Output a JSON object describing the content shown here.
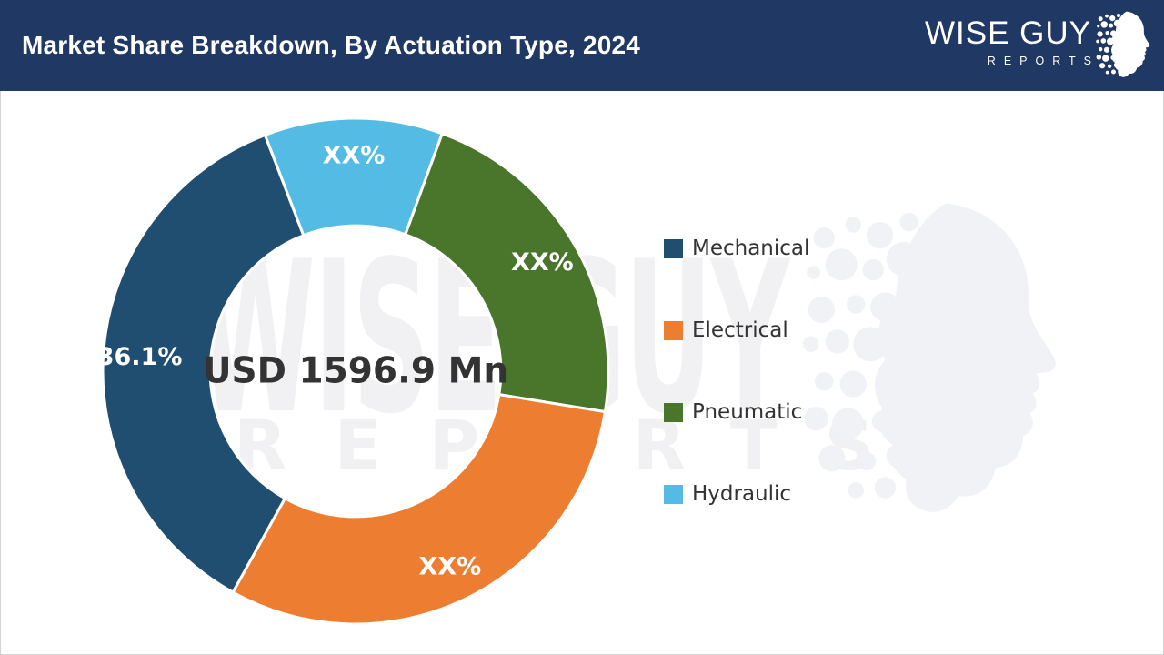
{
  "header": {
    "title": "Market Share Breakdown, By Actuation Type, 2024",
    "bg_color": "#1f3864",
    "logo": {
      "name": "WISE GUY",
      "sub": "REPORTS"
    }
  },
  "watermark": {
    "name": "WISE GUY",
    "sub": "REPORTS"
  },
  "chart_data": {
    "type": "pie",
    "subtype": "donut",
    "title": "Market Share Breakdown, By Actuation Type, 2024",
    "year": "2024",
    "center_label": "USD 1596.9 Mn",
    "legend_position": "right",
    "start_angle_deg_from_top": -21,
    "donut_hole_ratio": 0.575,
    "separator_color": "#ffffff",
    "segments": [
      {
        "name": "Hydraulic",
        "display_label": "XX%",
        "share_pct_est": 11.4,
        "color": "#54bce4"
      },
      {
        "name": "Pneumatic",
        "display_label": "XX%",
        "share_pct_est": 22.0,
        "color": "#49762b"
      },
      {
        "name": "Electrical",
        "display_label": "XX%",
        "share_pct_est": 30.5,
        "color": "#ed7d31"
      },
      {
        "name": "Mechanical",
        "display_label": "36.1%",
        "share_pct_est": 36.1,
        "color": "#204e70"
      }
    ],
    "legend": [
      {
        "label": "Mechanical",
        "color": "#204e70"
      },
      {
        "label": "Electrical",
        "color": "#ed7d31"
      },
      {
        "label": "Pneumatic",
        "color": "#49762b"
      },
      {
        "label": "Hydraulic",
        "color": "#54bce4"
      }
    ]
  }
}
